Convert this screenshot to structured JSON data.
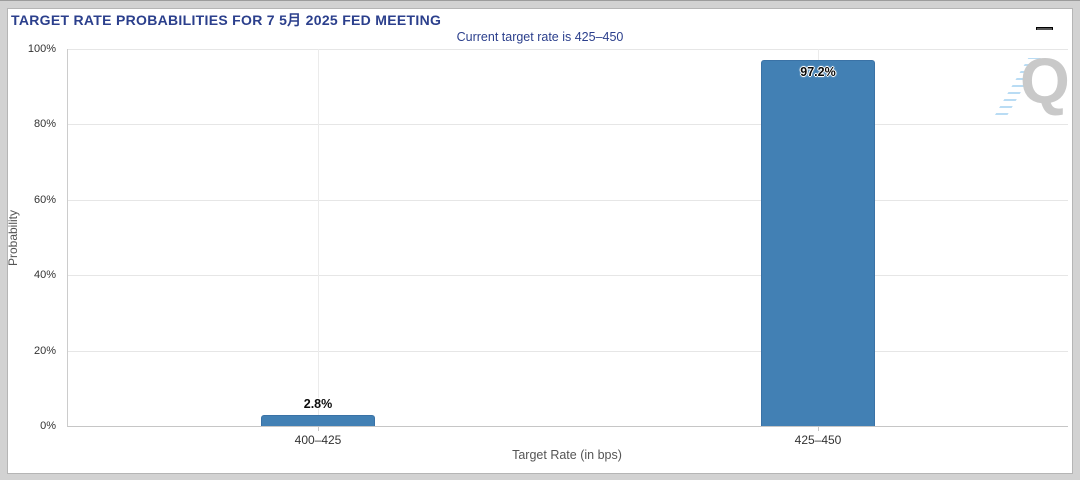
{
  "header": {
    "title": "TARGET RATE PROBABILITIES FOR 7 5月 2025 FED MEETING"
  },
  "icons": {
    "context_menu": "hamburger-icon",
    "watermark": "q-logo-watermark"
  },
  "watermark": {
    "letter": "Q"
  },
  "chart_data": {
    "type": "bar",
    "title": "TARGET RATE PROBABILITIES FOR 7 5月 2025 FED MEETING",
    "subtitle": "Current target rate is 425–450",
    "categories": [
      "400–425",
      "425–450"
    ],
    "values": [
      2.8,
      97.2
    ],
    "data_labels": [
      "2.8%",
      "97.2%"
    ],
    "xlabel": "Target Rate (in bps)",
    "ylabel": "Probability",
    "ylim": [
      0,
      100
    ],
    "yticks": [
      {
        "value": 0,
        "label": "0%"
      },
      {
        "value": 20,
        "label": "20%"
      },
      {
        "value": 40,
        "label": "40%"
      },
      {
        "value": 60,
        "label": "60%"
      },
      {
        "value": 80,
        "label": "80%"
      },
      {
        "value": 100,
        "label": "100%"
      }
    ],
    "grid": true,
    "legend": false,
    "colors": {
      "bar": "#4280b4",
      "bar_border": "#3a72a6",
      "accent_navy": "#2b3f8c"
    }
  }
}
